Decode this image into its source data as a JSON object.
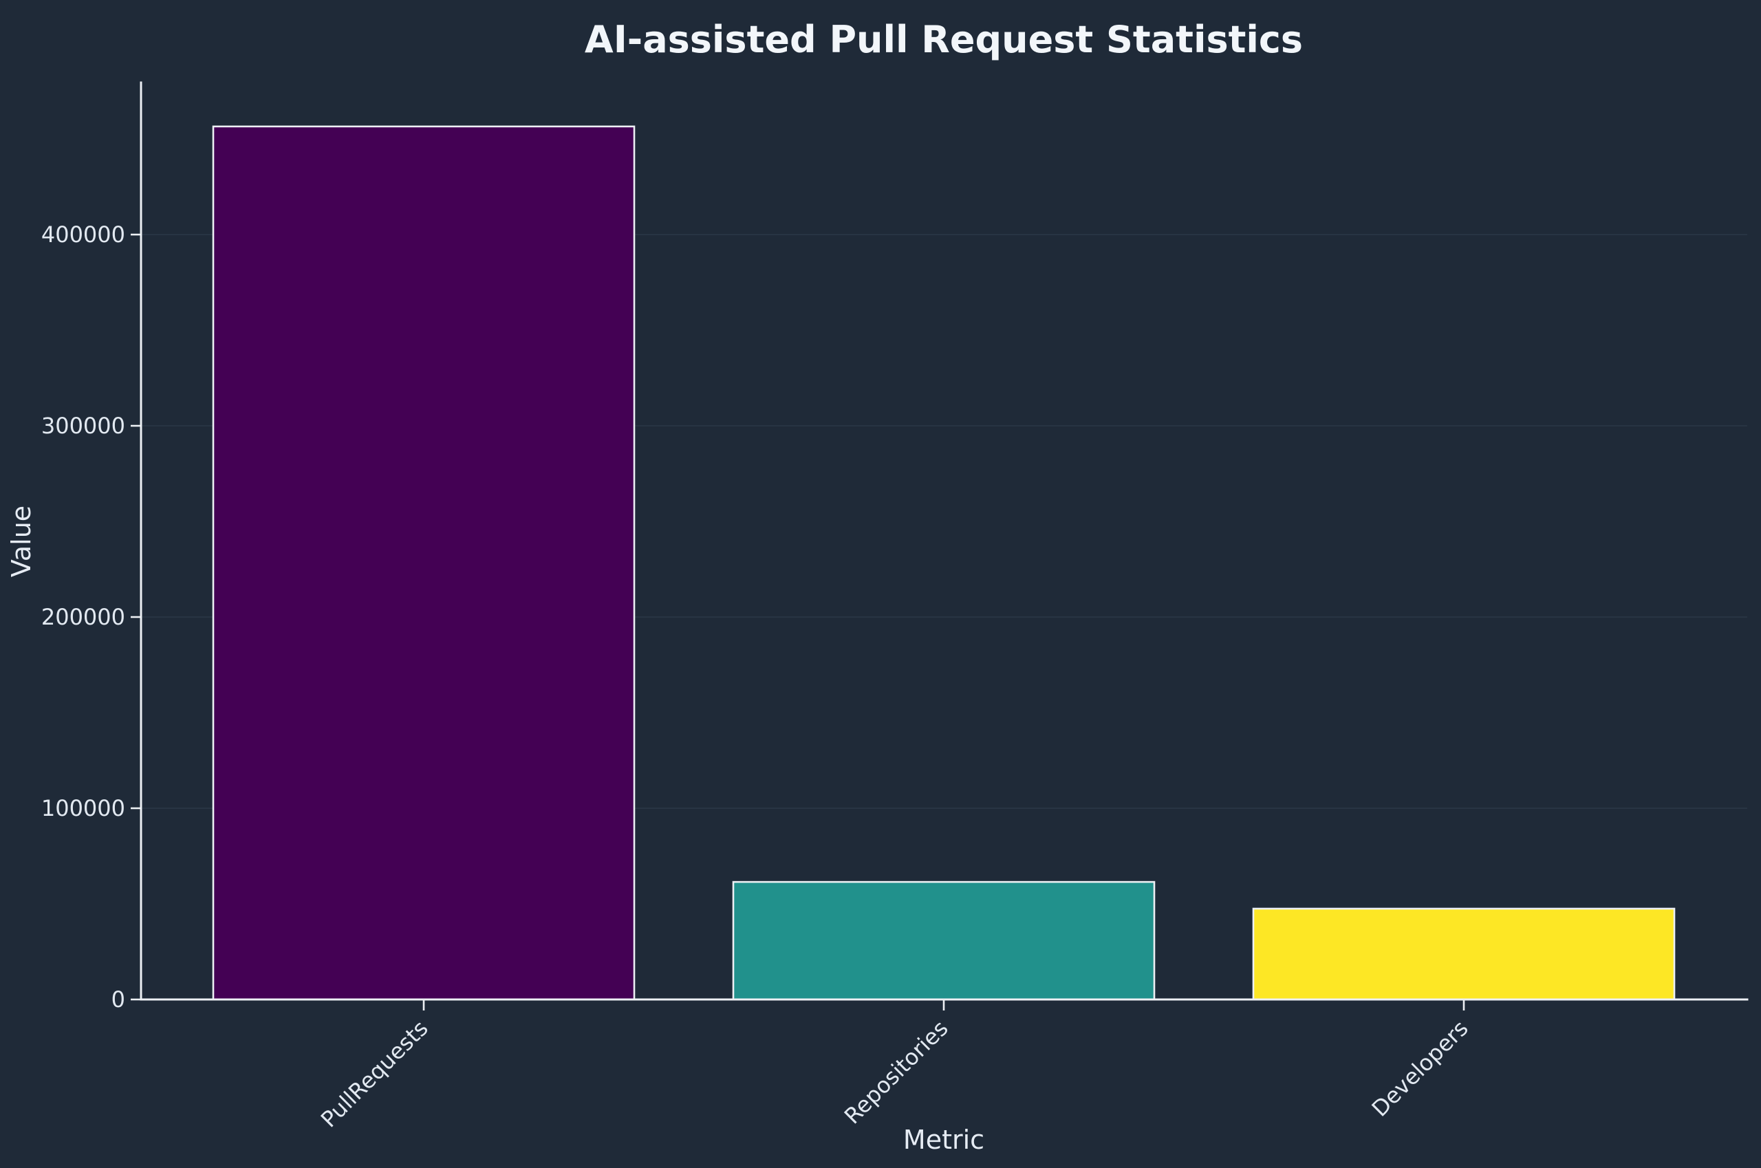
{
  "page": {
    "background_color": "#1f2a38"
  },
  "chart_data": {
    "type": "bar",
    "title": "AI-assisted Pull Request Statistics",
    "xlabel": "Metric",
    "ylabel": "Value",
    "categories": [
      "PullRequests",
      "Repositories",
      "Developers"
    ],
    "values": [
      456535,
      61465,
      47489
    ],
    "bar_colors": [
      "#440154",
      "#21918c",
      "#fde725"
    ],
    "bar_edge_color": "#edf0f4",
    "yticks": [
      0,
      100000,
      200000,
      300000,
      400000
    ],
    "ytick_labels": [
      "0",
      "100000",
      "200000",
      "300000",
      "400000"
    ],
    "ylim": [
      0,
      479500
    ],
    "x_tick_rotation_deg": 45,
    "grid": "horizontal-faint",
    "legend": "none",
    "background_color": "#1f2a38",
    "text_color": "#e6ecf4",
    "spine_color": "#edf0f4"
  }
}
